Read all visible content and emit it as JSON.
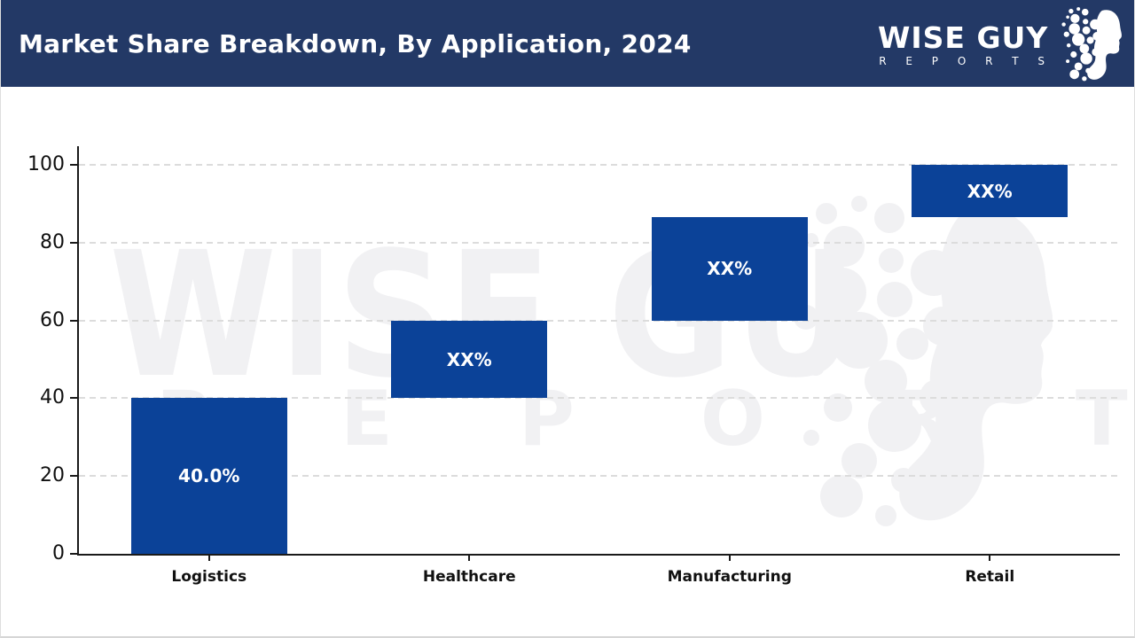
{
  "header": {
    "title": "Market Share Breakdown, By Application, 2024",
    "logo": {
      "line1": "WISE GUY",
      "line2": "R E P O R T S"
    }
  },
  "watermark": {
    "line1": "WISE GU",
    "line2": "R E P O R T S"
  },
  "chart_data": {
    "type": "bar",
    "subtype": "waterfall",
    "title": "Market Share Breakdown, By Application, 2024",
    "categories": [
      "Logistics",
      "Healthcare",
      "Manufacturing",
      "Retail"
    ],
    "segments": [
      {
        "category": "Logistics",
        "start": 0,
        "end": 40,
        "label": "40.0%"
      },
      {
        "category": "Healthcare",
        "start": 40,
        "end": 60,
        "label": "XX%"
      },
      {
        "category": "Manufacturing",
        "start": 60,
        "end": 86.5,
        "label": "XX%"
      },
      {
        "category": "Retail",
        "start": 86.5,
        "end": 100,
        "label": "XX%"
      }
    ],
    "y_ticks": [
      0,
      20,
      40,
      60,
      80,
      100
    ],
    "ylim": [
      0,
      105
    ],
    "xlabel": "",
    "ylabel": "",
    "grid": "horizontal-dashed",
    "legend": null,
    "colors": {
      "bar": "#0b4298",
      "header_bg": "#233966",
      "grid_line": "#dcdcdc",
      "axis": "#1a1a1a",
      "watermark": "#f1f1f3",
      "bar_value_text": "#ffffff"
    }
  }
}
